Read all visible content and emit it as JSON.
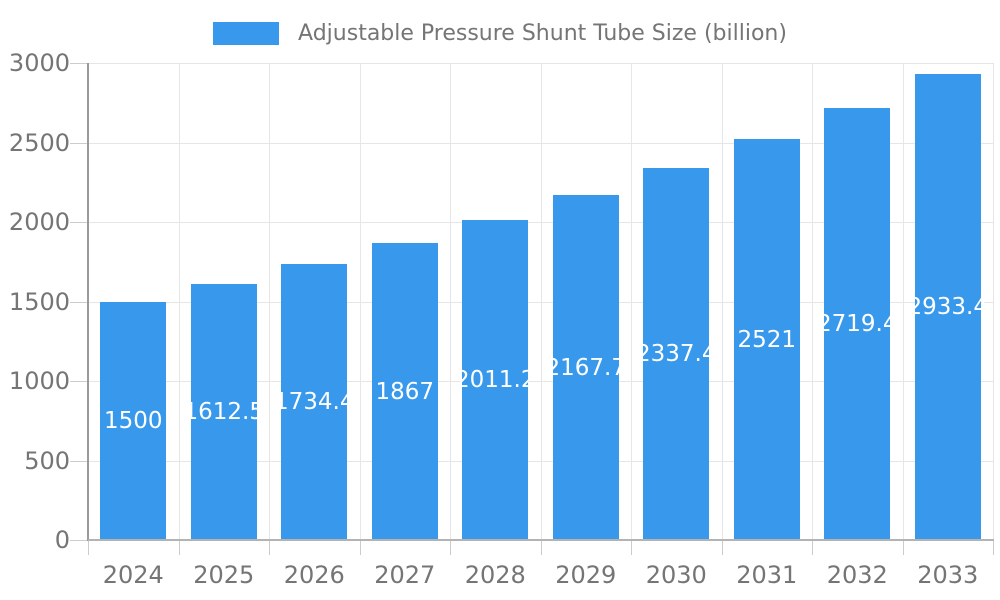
{
  "chart_data": {
    "type": "bar",
    "legend": "Adjustable Pressure Shunt Tube Size (billion)",
    "legend_position": "top",
    "categories": [
      "2024",
      "2025",
      "2026",
      "2027",
      "2028",
      "2029",
      "2030",
      "2031",
      "2032",
      "2033"
    ],
    "values": [
      1500,
      1612.5,
      1734.4,
      1867,
      2011.2,
      2167.7,
      2337.4,
      2521,
      2719.4,
      2933.4
    ],
    "bar_labels": [
      "1500",
      "1612.5",
      "1734.4",
      "1867",
      "2011.2",
      "2167.7",
      "2337.4",
      "2521",
      "2719.4",
      "2933.4"
    ],
    "xlabel": "",
    "ylabel": "",
    "ylim": [
      0,
      3000
    ],
    "yticks": [
      0,
      500,
      1000,
      1500,
      2000,
      2500,
      3000
    ],
    "grid": true,
    "colors": {
      "bar": "#3899ec",
      "bar_label_text": "#ffffff",
      "axis_text": "#757575",
      "gridline": "#e6e6e6",
      "axis_line": "#a6a6a6",
      "tick": "#cccccc",
      "background": "#ffffff"
    }
  }
}
